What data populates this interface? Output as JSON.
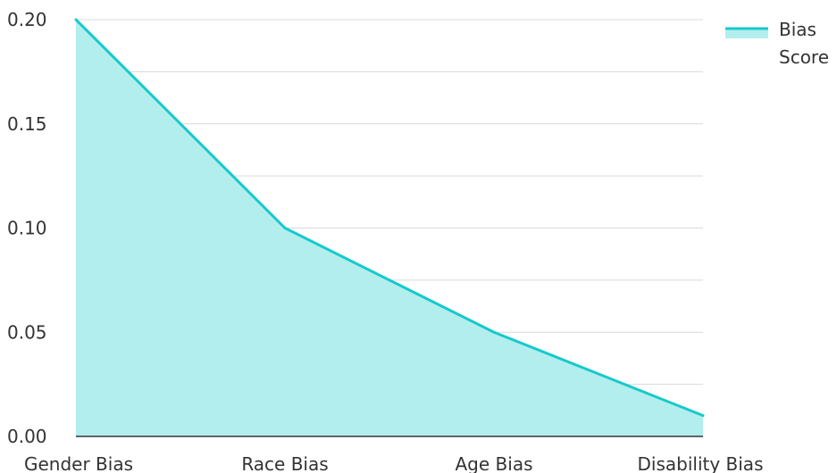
{
  "chart_data": {
    "type": "area",
    "categories": [
      "Gender Bias",
      "Race Bias",
      "Age Bias",
      "Disability Bias"
    ],
    "series": [
      {
        "name": "Bias Score",
        "values": [
          0.2,
          0.1,
          0.05,
          0.01
        ]
      }
    ],
    "title": "",
    "xlabel": "",
    "ylabel": "",
    "ylim": [
      0,
      0.2
    ],
    "yticks": [
      "0.00",
      "0.05",
      "0.10",
      "0.15",
      "0.20"
    ],
    "grid": true,
    "legend_position": "top-right",
    "legend_lines": [
      "Bias",
      "Score"
    ],
    "colors": {
      "line": "#17c9cc",
      "fill": "#b2eeee",
      "grid": "#d9d9d9",
      "axis": "#333333"
    }
  }
}
